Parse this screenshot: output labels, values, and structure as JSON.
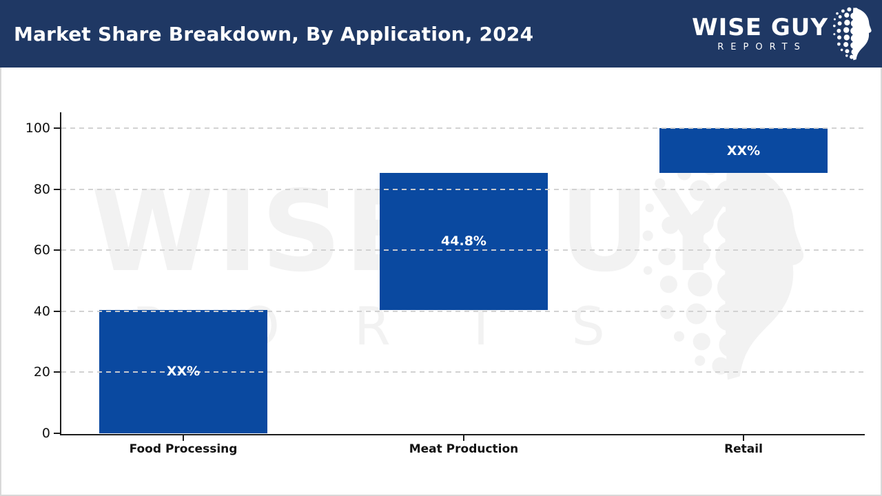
{
  "header": {
    "title": "Market Share Breakdown, By Application, 2024",
    "bg_color": "#1f3864",
    "logo": {
      "line1": "WISE GUY",
      "line2": "REPORTS",
      "face_icon": "dotted-face-profile"
    }
  },
  "watermark": {
    "line1": "WISE GUY",
    "line2": "P O R T S",
    "face_icon": "dotted-face-profile"
  },
  "chart_data": {
    "type": "bar",
    "subtype": "floating-waterfall",
    "title": "Market Share Breakdown, By Application, 2024",
    "categories": [
      "Food Processing",
      "Meat Production",
      "Retail"
    ],
    "segments": [
      {
        "category": "Food Processing",
        "from": 0,
        "to": 40.5,
        "label": "XX%"
      },
      {
        "category": "Meat Production",
        "from": 40.5,
        "to": 85.3,
        "label": "44.8%"
      },
      {
        "category": "Retail",
        "from": 85.3,
        "to": 100,
        "label": "XX%"
      }
    ],
    "ylim": [
      0,
      105
    ],
    "yticks": [
      0,
      20,
      40,
      60,
      80,
      100
    ],
    "grid": "horizontal-dashed",
    "legend": "none",
    "bar_color": "#0a49a0",
    "bar_label_color": "#ffffff",
    "xlabel": "",
    "ylabel": ""
  }
}
